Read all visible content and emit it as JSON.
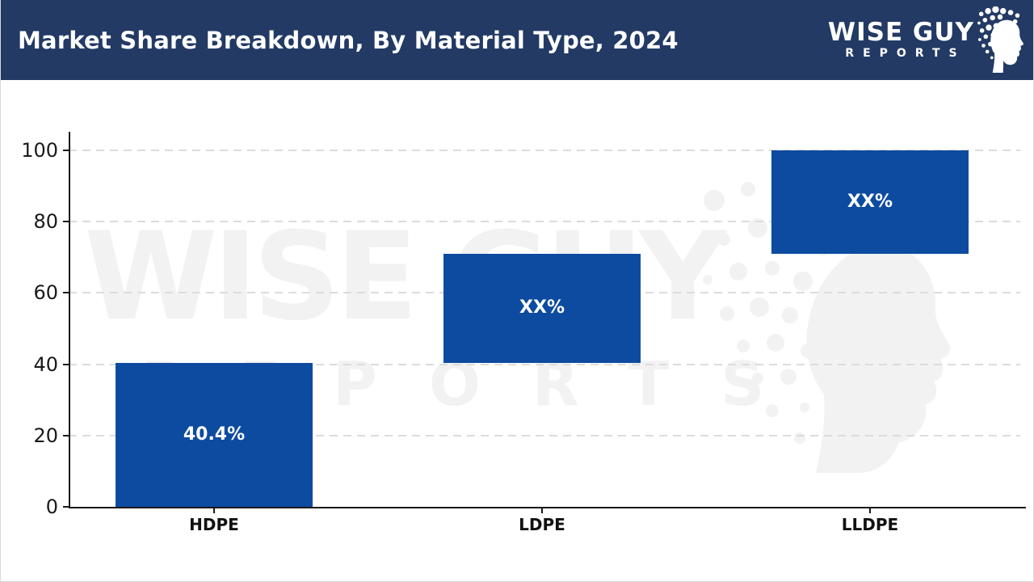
{
  "header": {
    "title": "Market Share Breakdown, By Material Type, 2024",
    "logo": {
      "line1": "WISE GUY",
      "line2": "REPORTS"
    }
  },
  "watermark": {
    "line1": "WISE GUY",
    "line2": "REPORTS"
  },
  "chart_data": {
    "type": "bar",
    "variant": "stacked-waterfall-segments",
    "title": "Market Share Breakdown, By Material Type, 2024",
    "categories": [
      "HDPE",
      "LDPE",
      "LLDPE"
    ],
    "series": [
      {
        "name": "HDPE",
        "start": 0,
        "end": 40.4,
        "label": "40.4%"
      },
      {
        "name": "LDPE",
        "start": 40.4,
        "end": 71,
        "label": "XX%"
      },
      {
        "name": "LLDPE",
        "start": 71,
        "end": 100,
        "label": "XX%"
      }
    ],
    "xlabel": "",
    "ylabel": "",
    "yticks": [
      0,
      20,
      40,
      60,
      80,
      100
    ],
    "ylim": [
      0,
      105
    ],
    "grid": {
      "axis": "y",
      "style": "dashed",
      "color": "#dcdcdc"
    },
    "legend_position": "none",
    "colors": {
      "bar": "#0d4ba0",
      "bar_label": "#ffffff",
      "axis": "#1a1a1a",
      "header_bg": "#223a64",
      "watermark": "#f2f2f2"
    }
  }
}
